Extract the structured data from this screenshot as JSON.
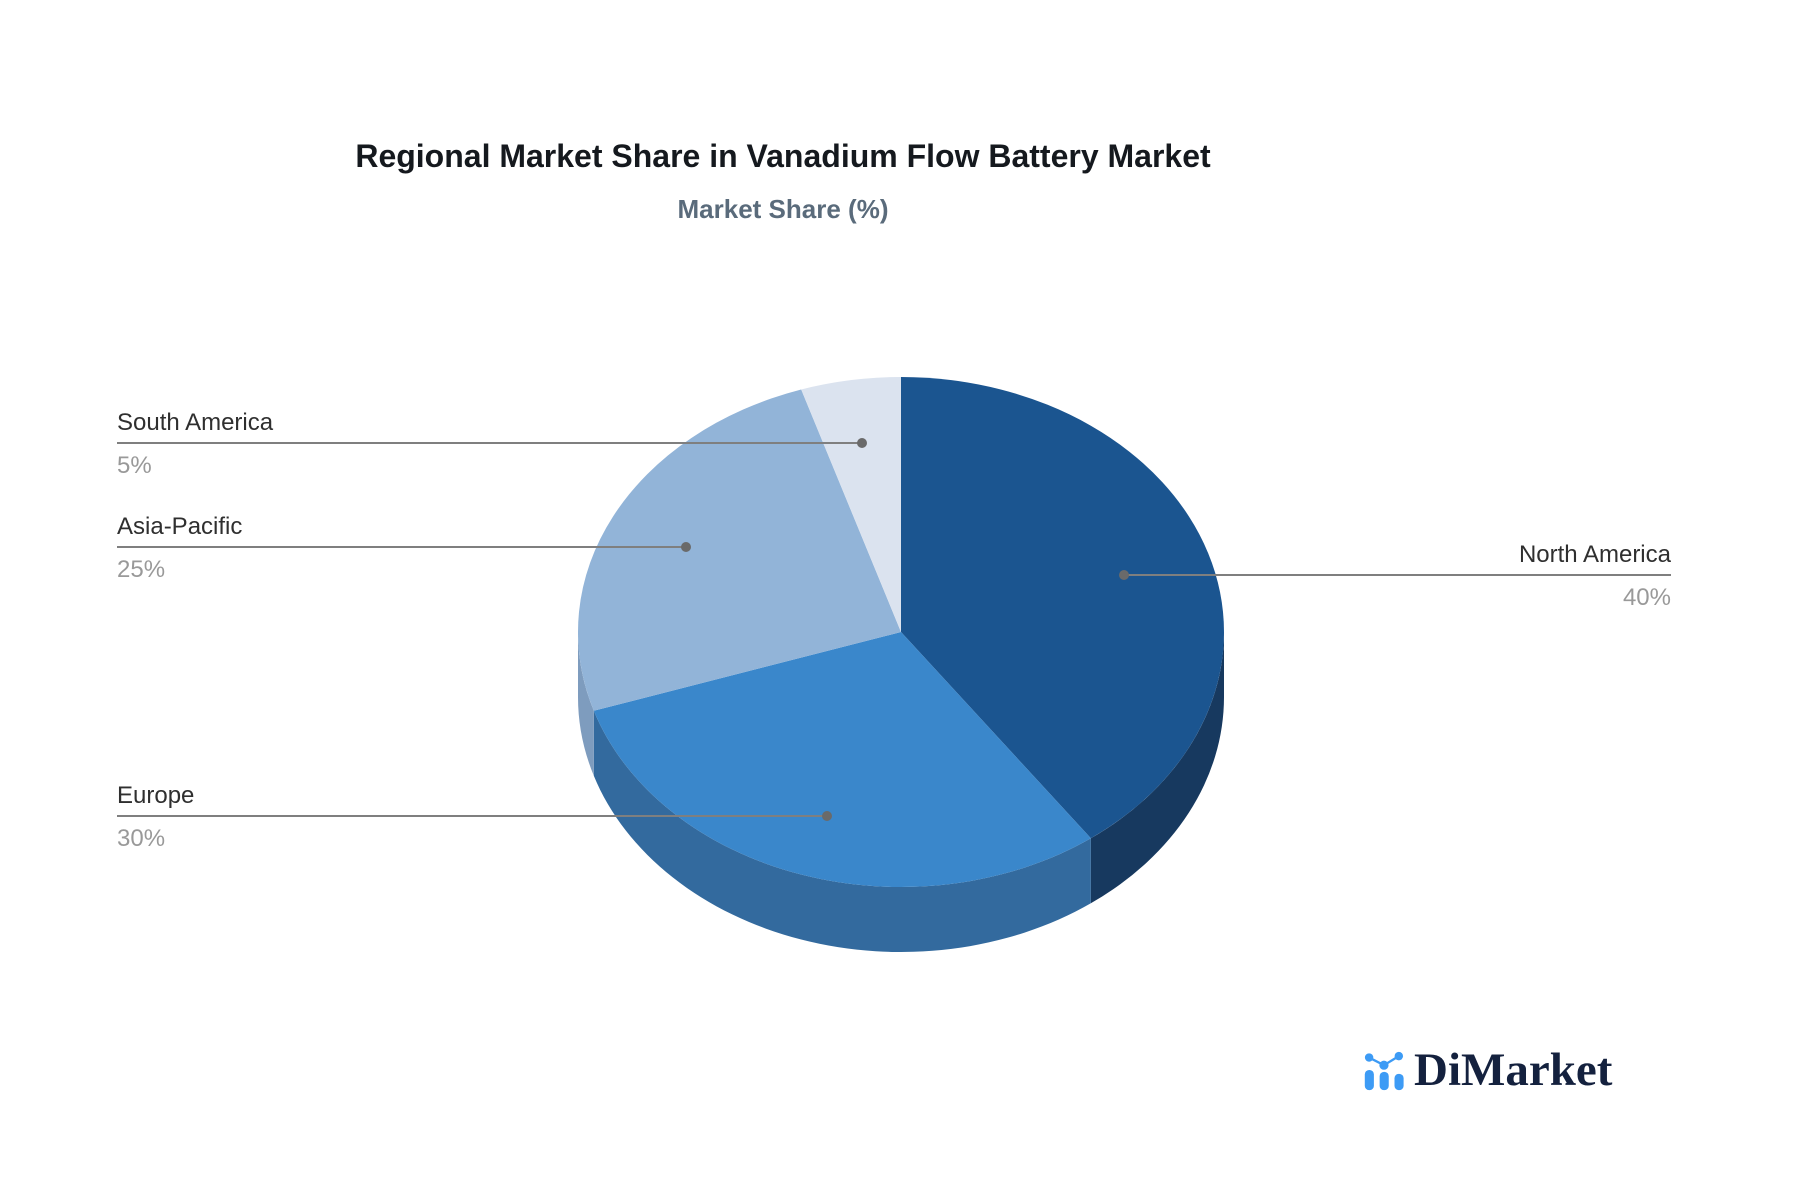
{
  "branding": {
    "logo_text": "DiMarket",
    "logo_color": "#14213E",
    "logo_icon": "bar-line-chart-icon",
    "logo_icon_color": "#3D9BF5"
  },
  "colors": {
    "background": "#FFFFFF",
    "title_text": "#15191E",
    "subtitle_text": "#5A6B7B",
    "label_text": "#2F2F2F",
    "percent_text": "#999999",
    "leader_line": "#7F7F7F",
    "leader_dot": "#6A6A6A"
  },
  "chart_data": {
    "type": "pie",
    "title": "Regional Market Share in Vanadium Flow Battery Market",
    "subtitle": "Market Share (%)",
    "unit": "%",
    "effect_3d": true,
    "start_angle": "12-oclock",
    "direction": "clockwise",
    "legend_position": "none",
    "slices": [
      {
        "label": "North America",
        "value": 40,
        "display": "40%",
        "color": "#1B5590",
        "side_color": "#17395F",
        "callout_side": "right"
      },
      {
        "label": "Europe",
        "value": 30,
        "display": "30%",
        "color": "#3A87CB",
        "side_color": "#336A9E",
        "callout_side": "left"
      },
      {
        "label": "Asia-Pacific",
        "value": 25,
        "display": "25%",
        "color": "#92B4D8",
        "side_color": "#7E9CBE",
        "callout_side": "left"
      },
      {
        "label": "South America",
        "value": 5,
        "display": "5%",
        "color": "#DBE3EF",
        "side_color": "#B9C6DC",
        "callout_side": "left"
      }
    ]
  }
}
